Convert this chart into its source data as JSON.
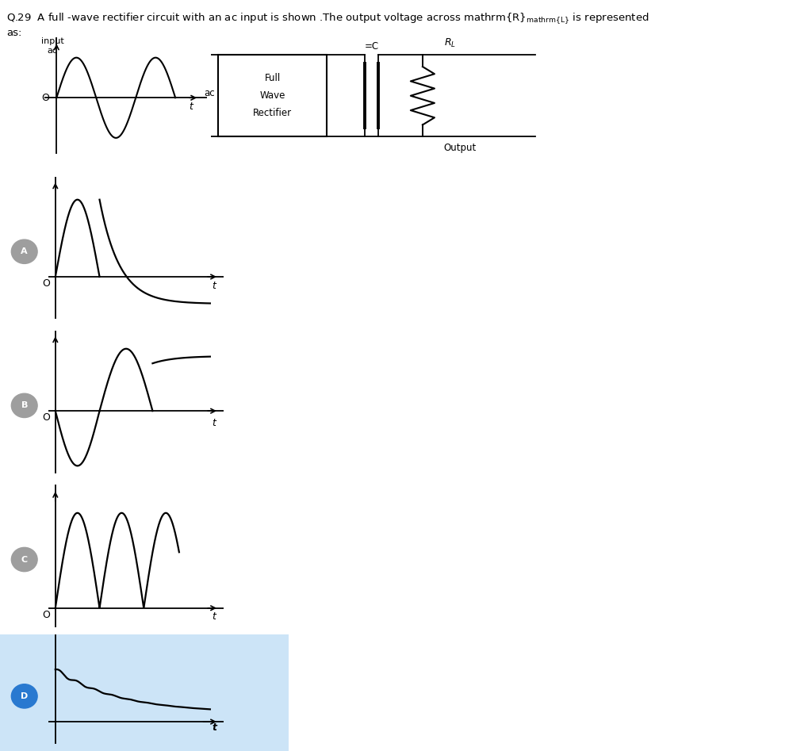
{
  "bg_color": "#ffffff",
  "highlight_color": "#cce4f7",
  "title_line1": "Q.29  A full -wave rectifier circuit with an ac input is shown .The output voltage across $\\mathrm{mathrm{R}}_{\\mathrm{mathrm{L}}}$ is represented",
  "title_line2": "as:",
  "circuit_label_input": "input\nac",
  "circuit_label_ac": "ac",
  "circuit_label_fwr": [
    "Full",
    "Wave",
    "Rectifier"
  ],
  "circuit_label_cap": "=C",
  "circuit_label_rl": "$R_L$",
  "circuit_label_output": "Output",
  "option_A_label": "A",
  "option_B_label": "B",
  "option_C_label": "C",
  "option_D_label": "D",
  "circle_gray": "#9e9e9e",
  "circle_blue": "#2979d0"
}
